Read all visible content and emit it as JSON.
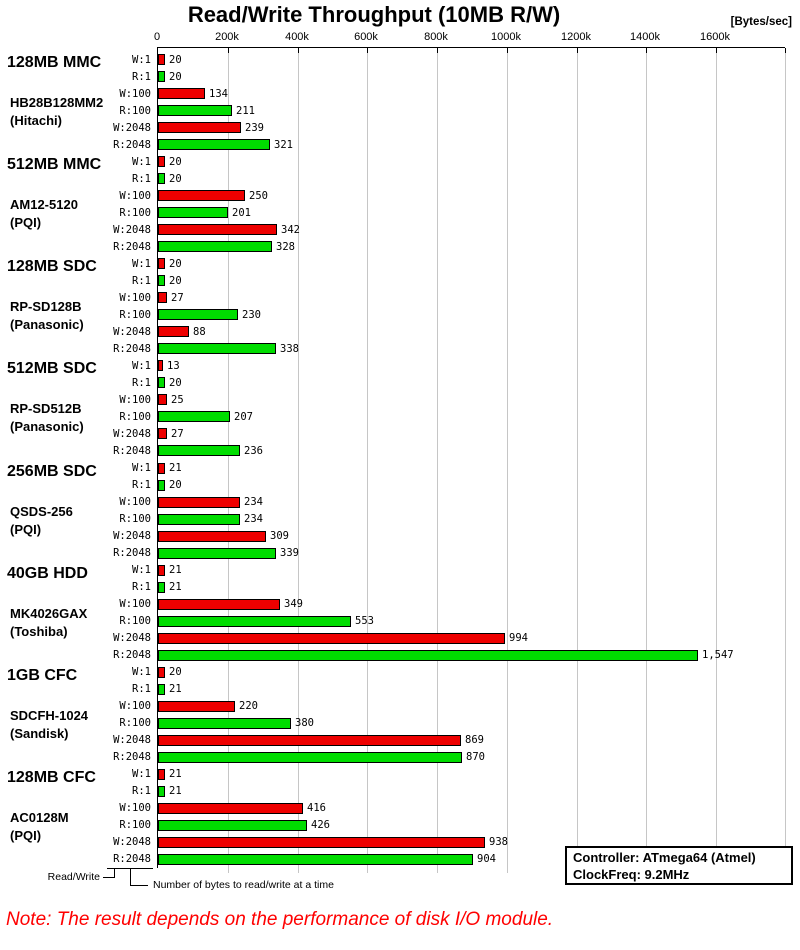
{
  "title": "Read/Write Throughput (10MB R/W)",
  "unit_label": "[Bytes/sec]",
  "note": "Note: The result depends on the performance of disk I/O module.",
  "info_box": {
    "controller": "Controller: ATmega64 (Atmel)",
    "clock": "ClockFreq: 9.2MHz"
  },
  "legend": {
    "read_write_label": "Read/Write",
    "bytes_label": "Number of bytes to read/write at a time"
  },
  "colors": {
    "write": "#ee0000",
    "read": "#00dd00",
    "grid": "#c6c6c6",
    "note": "#ff0000"
  },
  "chart_data": {
    "type": "bar",
    "orientation": "horizontal",
    "title": "Read/Write Throughput (10MB R/W)",
    "value_unit": "Bytes/sec",
    "axis": {
      "min_k": 0,
      "max_k": 1800,
      "step_k": 200,
      "tick_labels": [
        "0",
        "200k",
        "400k",
        "600k",
        "800k",
        "1000k",
        "1200k",
        "1400k",
        "1600k"
      ]
    },
    "row_labels": [
      "W:1",
      "R:1",
      "W:100",
      "R:100",
      "W:2048",
      "R:2048"
    ],
    "groups": [
      {
        "name": "128MB MMC",
        "model": "HB28B128MM2",
        "vendor": "(Hitachi)",
        "values_k": [
          20,
          20,
          134,
          211,
          239,
          321
        ],
        "value_labels": [
          "20",
          "20",
          "134",
          "211",
          "239",
          "321"
        ]
      },
      {
        "name": "512MB MMC",
        "model": "AM12-5120",
        "vendor": "(PQI)",
        "values_k": [
          20,
          20,
          250,
          201,
          342,
          328
        ],
        "value_labels": [
          "20",
          "20",
          "250",
          "201",
          "342",
          "328"
        ]
      },
      {
        "name": "128MB SDC",
        "model": "RP-SD128B",
        "vendor": "(Panasonic)",
        "values_k": [
          20,
          20,
          27,
          230,
          88,
          338
        ],
        "value_labels": [
          "20",
          "20",
          "27",
          "230",
          "88",
          "338"
        ]
      },
      {
        "name": "512MB SDC",
        "model": "RP-SD512B",
        "vendor": "(Panasonic)",
        "values_k": [
          13,
          20,
          25,
          207,
          27,
          236
        ],
        "value_labels": [
          "13",
          "20",
          "25",
          "207",
          "27",
          "236"
        ]
      },
      {
        "name": "256MB SDC",
        "model": "QSDS-256",
        "vendor": "(PQI)",
        "values_k": [
          21,
          20,
          234,
          234,
          309,
          339
        ],
        "value_labels": [
          "21",
          "20",
          "234",
          "234",
          "309",
          "339"
        ]
      },
      {
        "name": "40GB HDD",
        "model": "MK4026GAX",
        "vendor": "(Toshiba)",
        "values_k": [
          21,
          21,
          349,
          553,
          994,
          1547
        ],
        "value_labels": [
          "21",
          "21",
          "349",
          "553",
          "994",
          "1,547"
        ]
      },
      {
        "name": "1GB CFC",
        "model": "SDCFH-1024",
        "vendor": "(Sandisk)",
        "values_k": [
          20,
          21,
          220,
          380,
          869,
          870
        ],
        "value_labels": [
          "20",
          "21",
          "220",
          "380",
          "869",
          "870"
        ]
      },
      {
        "name": "128MB CFC",
        "model": "AC0128M",
        "vendor": "(PQI)",
        "values_k": [
          21,
          21,
          416,
          426,
          938,
          904
        ],
        "value_labels": [
          "21",
          "21",
          "416",
          "426",
          "938",
          "904"
        ]
      }
    ]
  }
}
